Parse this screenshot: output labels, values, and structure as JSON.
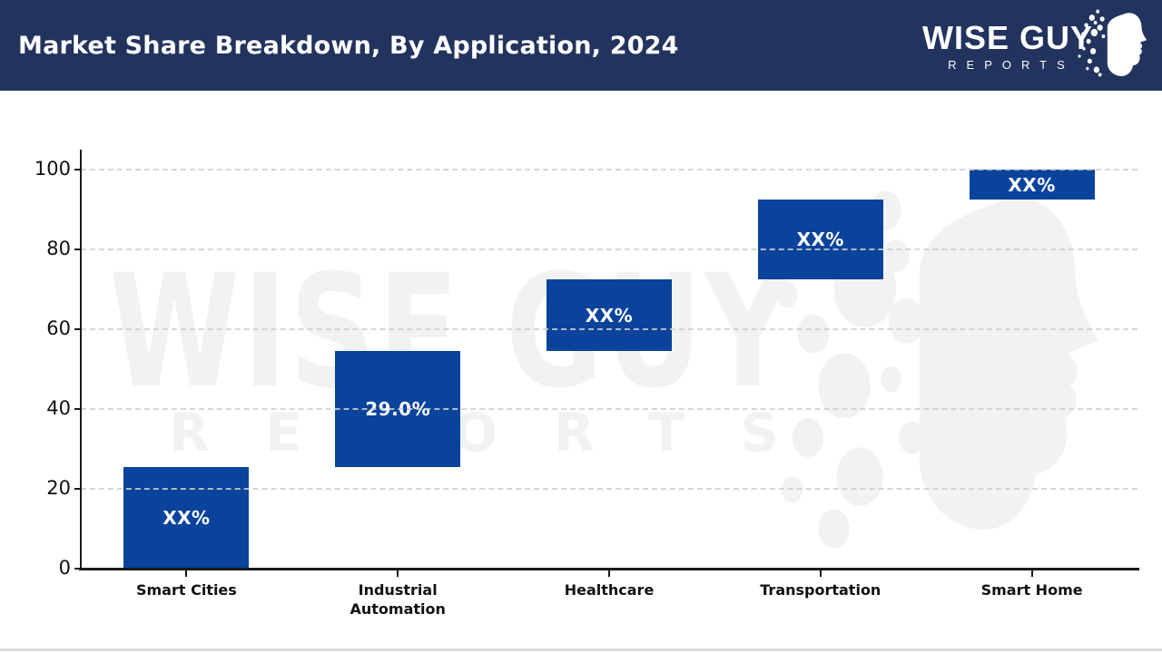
{
  "header": {
    "title": "Market Share Breakdown, By Application, 2024",
    "bg_color": "#22335e",
    "logo": {
      "wordmark": "WISE GUY",
      "subtext": "REPORTS"
    }
  },
  "watermark": {
    "line1": "WISE GUY",
    "line2": "REPORTS"
  },
  "chart_data": {
    "type": "bar",
    "subtype": "floating-segment-waterfall",
    "title": "Market Share Breakdown, By Application, 2024",
    "categories": [
      "Smart Cities",
      "Industrial Automation",
      "Healthcare",
      "Transportation",
      "Smart Home"
    ],
    "tick_labels": [
      "Smart Cities",
      "Industrial\nAutomation",
      "Healthcare",
      "Transportation",
      "Smart Home"
    ],
    "bars": [
      {
        "category": "Smart Cities",
        "start": 0,
        "end": 25.5,
        "label": "XX%"
      },
      {
        "category": "Industrial Automation",
        "start": 25.5,
        "end": 54.5,
        "label": "29.0%"
      },
      {
        "category": "Healthcare",
        "start": 54.5,
        "end": 72.5,
        "label": "XX%"
      },
      {
        "category": "Transportation",
        "start": 72.5,
        "end": 92.5,
        "label": "XX%"
      },
      {
        "category": "Smart Home",
        "start": 92.5,
        "end": 100,
        "label": "XX%"
      }
    ],
    "y_ticks": [
      0,
      20,
      40,
      60,
      80,
      100
    ],
    "ylim": [
      0,
      105
    ],
    "xlabel": "",
    "ylabel": "",
    "grid": "horizontal-dashed",
    "legend": null,
    "bar_color": "#09439c",
    "bar_label_color": "#ffffff",
    "axis_color": "#1a1a1a"
  }
}
